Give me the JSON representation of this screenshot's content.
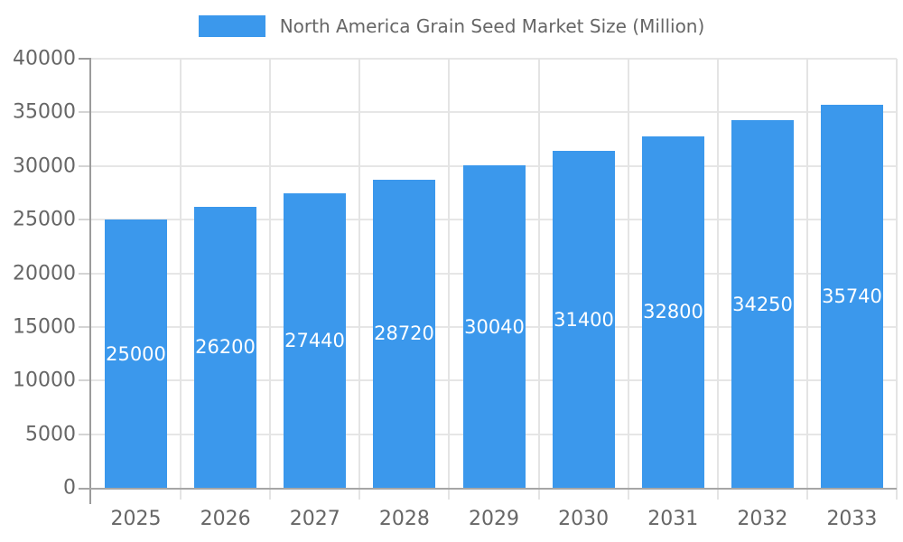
{
  "chart_data": {
    "type": "bar",
    "title": "North America Grain Seed Market Size (Million)",
    "categories": [
      "2025",
      "2026",
      "2027",
      "2028",
      "2029",
      "2030",
      "2031",
      "2032",
      "2033"
    ],
    "values": [
      25000,
      26200,
      27440,
      28720,
      30040,
      31400,
      32800,
      34250,
      35740
    ],
    "xlabel": "",
    "ylabel": "",
    "ylim": [
      0,
      40000
    ],
    "ytick_step": 5000,
    "yticks": [
      0,
      5000,
      10000,
      15000,
      20000,
      25000,
      30000,
      35000,
      40000
    ],
    "grid": true,
    "legend_position": "top",
    "bar_color": "#3B98EC",
    "value_label_color": "#FFFFFF",
    "tick_label_color": "#666666",
    "grid_color": "#E6E6E6",
    "axis_color": "#9B9B9B",
    "background_color": "#FFFFFF"
  },
  "legend": {
    "label": "North America Grain Seed Market Size (Million)"
  }
}
